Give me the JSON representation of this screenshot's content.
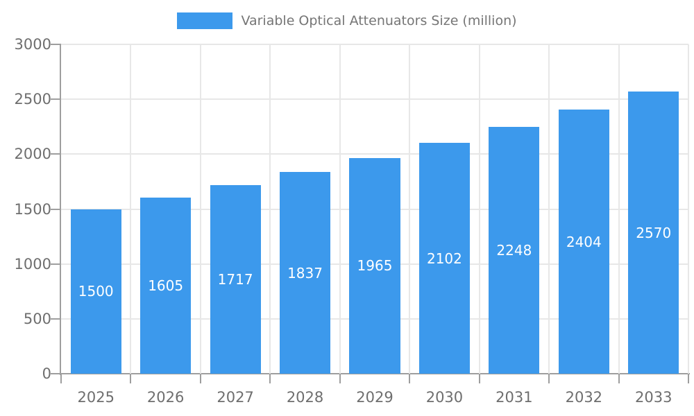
{
  "chart_data": {
    "type": "bar",
    "title": "Variable Optical Attenuators Size (million)",
    "legend": {
      "label": "Variable Optical Attenuators Size (million)",
      "position": "top"
    },
    "categories": [
      "2025",
      "2026",
      "2027",
      "2028",
      "2029",
      "2030",
      "2031",
      "2032",
      "2033"
    ],
    "values": [
      1500,
      1605,
      1717,
      1837,
      1965,
      2102,
      2248,
      2404,
      2570
    ],
    "value_labels_shown": true,
    "value_label_position": "center-of-bar",
    "xlabel": "",
    "ylabel": "",
    "ylim": [
      0,
      3000
    ],
    "yticks": [
      0,
      500,
      1000,
      1500,
      2000,
      2500,
      3000
    ],
    "grid": true,
    "colors": {
      "bar": "#3c99ec",
      "bar_value_text": "#ffffff",
      "grid": "#e7e7e7",
      "axis": "#9e9e9e",
      "tick_text": "#6e6e6e",
      "legend_text": "#757575",
      "background": "#ffffff"
    }
  }
}
